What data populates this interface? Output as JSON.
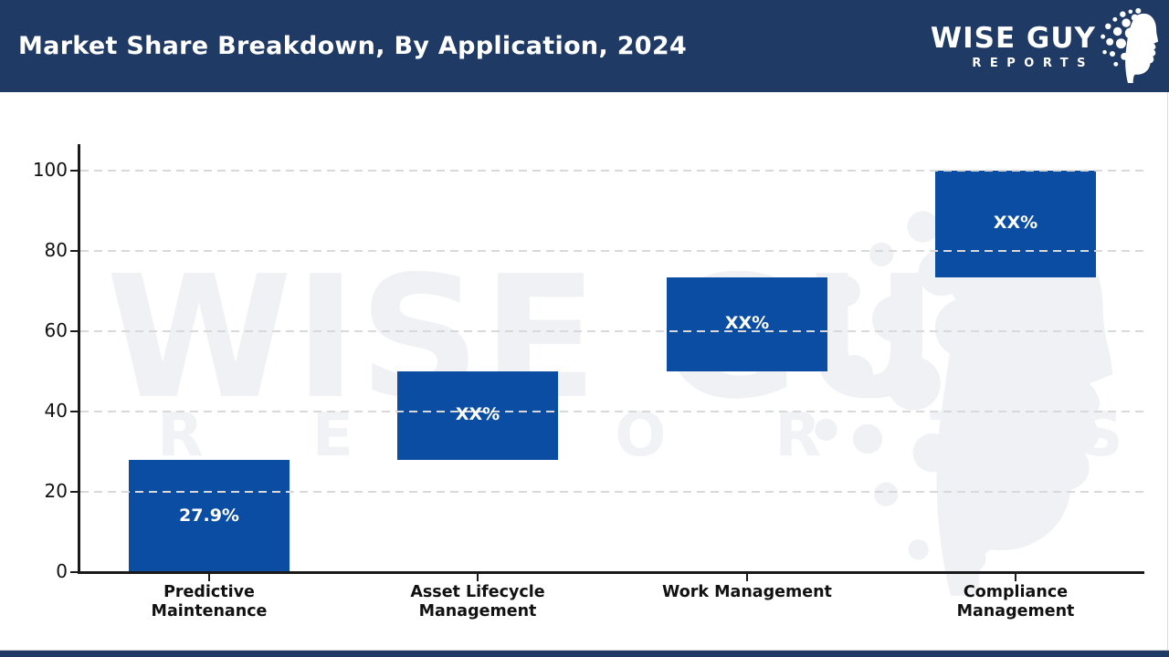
{
  "header": {
    "title": "Market Share Breakdown, By Application, 2024",
    "logo": {
      "name": "WISE GUY",
      "sub": "REPORTS"
    }
  },
  "watermark": {
    "name": "WISE GUY",
    "sub": "R E P O R T S"
  },
  "colors": {
    "header_bg": "#203a66",
    "footer_bg": "#203a66",
    "bar": "#0b4da2",
    "grid": "#d9d9d9",
    "axis": "#1a1a1a"
  },
  "chart_data": {
    "type": "bar",
    "subtype": "floating-waterfall",
    "title": "Market Share Breakdown, By Application, 2024",
    "categories": [
      [
        "Predictive",
        "Maintenance"
      ],
      [
        "Asset Lifecycle",
        "Management"
      ],
      [
        "Work Management"
      ],
      [
        "Compliance",
        "Management"
      ]
    ],
    "segments": [
      {
        "category": "Predictive Maintenance",
        "start": 0,
        "end": 27.9,
        "label": "27.9%"
      },
      {
        "category": "Asset Lifecycle Management",
        "start": 27.9,
        "end": 50.0,
        "label": "XX%"
      },
      {
        "category": "Work Management",
        "start": 50.0,
        "end": 73.4,
        "label": "XX%"
      },
      {
        "category": "Compliance Management",
        "start": 73.4,
        "end": 100,
        "label": "XX%"
      }
    ],
    "ylim": [
      0,
      100
    ],
    "yticks": [
      0,
      20,
      40,
      60,
      80,
      100
    ],
    "xlabel": "",
    "ylabel": "",
    "bar_color": "#0b4da2",
    "bar_label_color": "#ffffff",
    "grid": {
      "visible": true,
      "style": "dashed",
      "color": "#d9d9d9",
      "over_bars": true
    },
    "legend": "none"
  }
}
